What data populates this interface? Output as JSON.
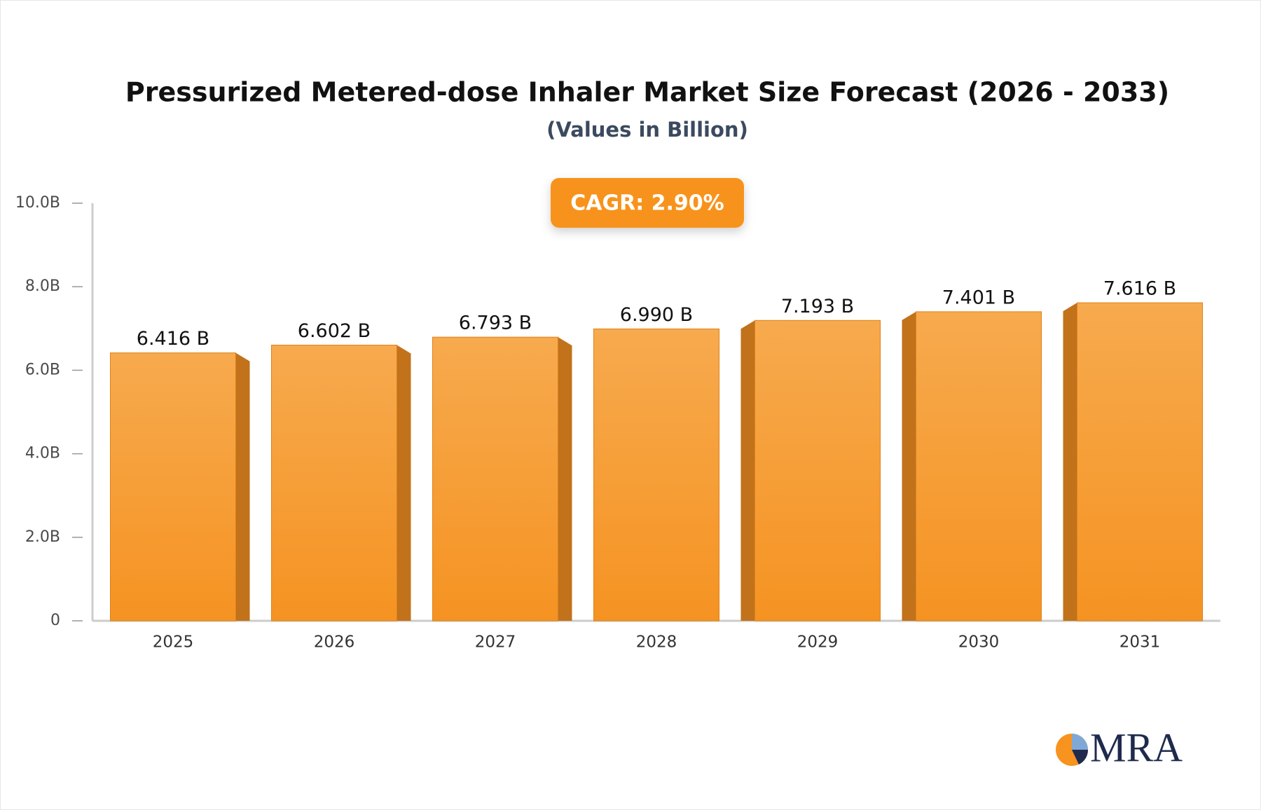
{
  "chart_data": {
    "type": "bar",
    "title": "Pressurized Metered-dose Inhaler Market Size Forecast (2026 - 2033)",
    "subtitle": "(Values in Billion)",
    "annotation": "CAGR: 2.90%",
    "categories": [
      "2025",
      "2026",
      "2027",
      "2028",
      "2029",
      "2030",
      "2031"
    ],
    "values": [
      6.416,
      6.602,
      6.793,
      6.99,
      7.193,
      7.401,
      7.616
    ],
    "value_labels": [
      "6.416 B",
      "6.602 B",
      "6.793 B",
      "6.990 B",
      "7.193 B",
      "7.401 B",
      "7.616 B"
    ],
    "color": "#f7a240",
    "ylim": [
      0,
      10
    ],
    "yticks": [
      0,
      {
        "value": 2,
        "label": "2.0B"
      },
      {
        "value": 4,
        "label": "4.0B"
      },
      {
        "value": 6,
        "label": "6.0B"
      },
      {
        "value": 8,
        "label": "8.0B"
      },
      {
        "value": 10,
        "label": "10.0B"
      }
    ],
    "grid": false
  },
  "logo": "MRA"
}
